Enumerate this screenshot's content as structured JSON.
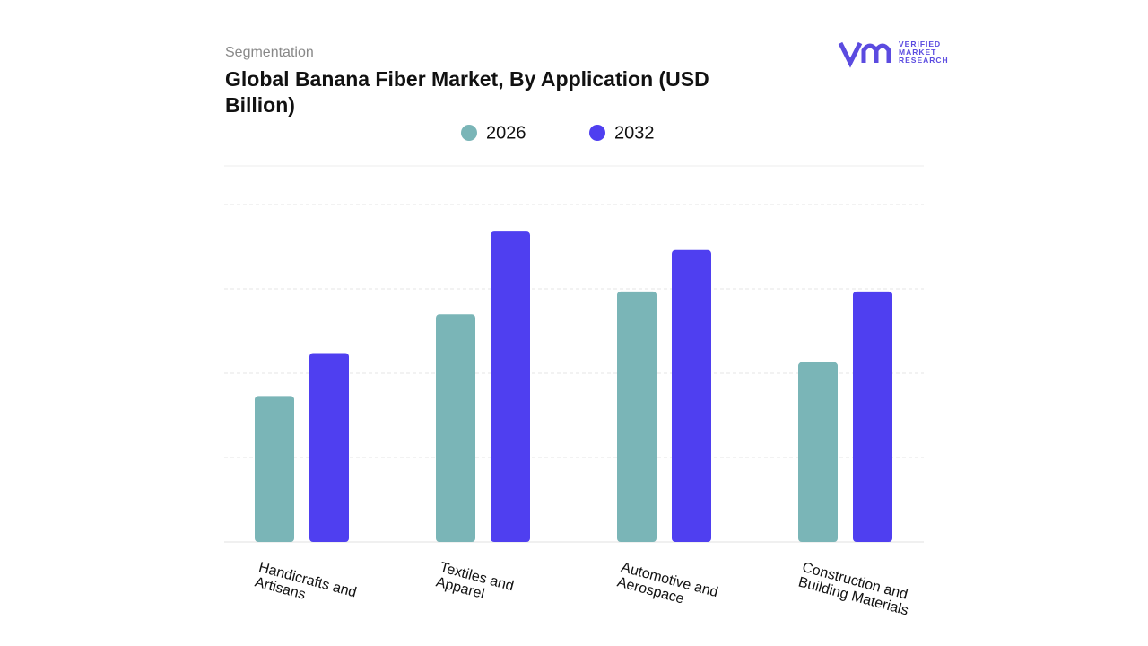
{
  "subtitle": "Segmentation",
  "brand": [
    "VERIFIED",
    "MARKET",
    "RESEARCH"
  ],
  "chart_data": {
    "type": "bar",
    "title": "Global Banana Fiber Market, By Application (USD Billion)",
    "categories": [
      "Handicrafts and Artisans",
      "Textiles and Apparel",
      "Automotive and Aerospace",
      "Construction and Building Materials"
    ],
    "series": [
      {
        "name": "2026",
        "color": "#7ab5b7",
        "values": [
          1.73,
          2.7,
          2.97,
          2.13
        ]
      },
      {
        "name": "2032",
        "color": "#4f3ff0",
        "values": [
          2.24,
          3.68,
          3.46,
          2.97
        ]
      }
    ],
    "ylim": [
      0,
      4
    ],
    "grid": true
  }
}
